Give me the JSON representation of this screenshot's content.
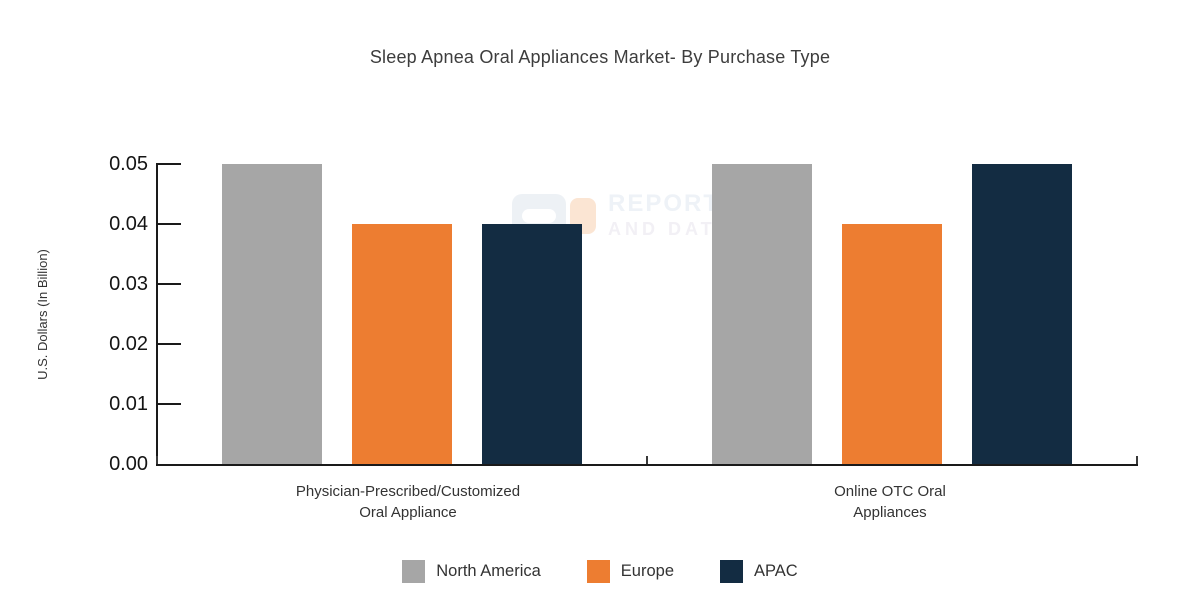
{
  "title": "Sleep Apnea Oral Appliances Market- By Purchase Type",
  "watermark": {
    "line1": "REPORTS",
    "line2": "AND DATA"
  },
  "chart_data": {
    "type": "bar",
    "title": "Sleep Apnea Oral Appliances Market- By Purchase Type",
    "xlabel": "",
    "ylabel": "U.S. Dollars (In Billion)",
    "categories": [
      "Physician-Prescribed/Customized Oral Appliance",
      "Online OTC Oral Appliances"
    ],
    "category_lines": [
      [
        "Physician-Prescribed/Customized",
        "Oral Appliance"
      ],
      [
        "Online OTC Oral",
        "Appliances"
      ]
    ],
    "series": [
      {
        "name": "North America",
        "color": "#a6a6a6",
        "values": [
          0.05,
          0.05
        ]
      },
      {
        "name": "Europe",
        "color": "#ed7d31",
        "values": [
          0.04,
          0.04
        ]
      },
      {
        "name": "APAC",
        "color": "#132c42",
        "values": [
          0.04,
          0.05
        ]
      }
    ],
    "ylim": [
      0,
      0.05
    ],
    "yticks": [
      0,
      0.01,
      0.02,
      0.03,
      0.04,
      0.05
    ],
    "ytick_labels": [
      "0.00",
      "0.01",
      "0.02",
      "0.03",
      "0.04",
      "0.05"
    ],
    "grid": false,
    "legend_position": "bottom",
    "axis_color": "#1a1a1a"
  }
}
